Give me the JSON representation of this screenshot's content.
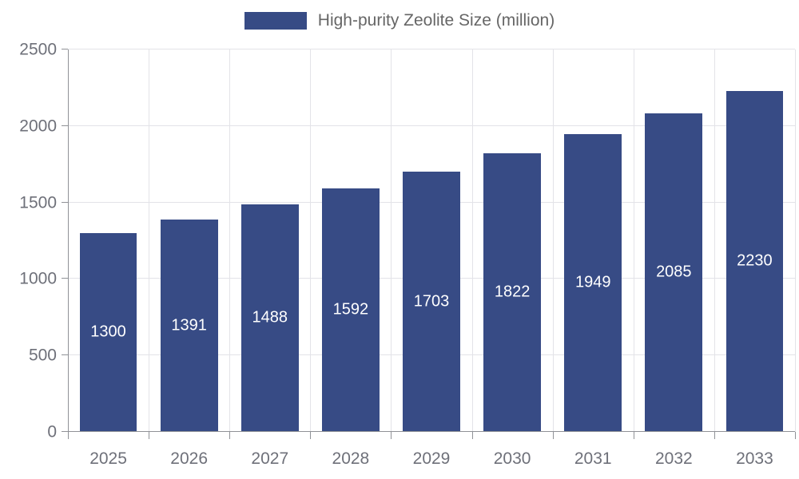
{
  "legend": {
    "label": "High-purity Zeolite Size (million)"
  },
  "chart_data": {
    "type": "bar",
    "title": "High-purity Zeolite Size (million)",
    "categories": [
      "2025",
      "2026",
      "2027",
      "2028",
      "2029",
      "2030",
      "2031",
      "2032",
      "2033"
    ],
    "values": [
      1300,
      1391,
      1488,
      1592,
      1703,
      1822,
      1949,
      2085,
      2230
    ],
    "xlabel": "",
    "ylabel": "",
    "ylim": [
      0,
      2500
    ],
    "yticks": [
      0,
      500,
      1000,
      1500,
      2000,
      2500
    ],
    "grid": true,
    "legend_position": "top",
    "colors": {
      "bar": "#374b85",
      "bar_label_text": "#ffffff",
      "axis_text": "#6e7079",
      "legend_text": "#666666",
      "gridline": "#e3e3e8",
      "axis_line": "#909297"
    }
  }
}
